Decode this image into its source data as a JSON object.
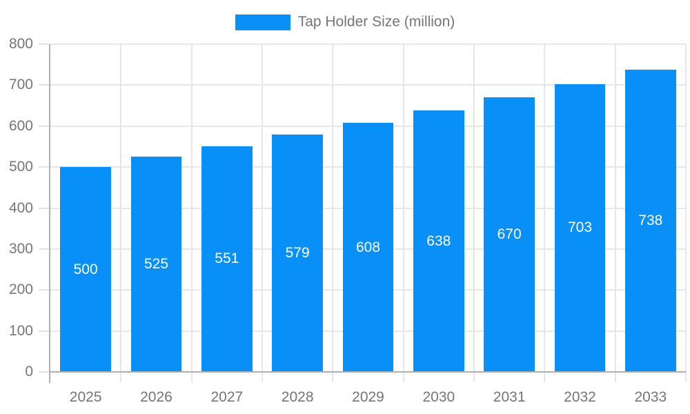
{
  "chart_data": {
    "type": "bar",
    "title": "",
    "xlabel": "",
    "ylabel": "",
    "legend": {
      "label": "Tap Holder Size (million)",
      "position": "top"
    },
    "categories": [
      "2025",
      "2026",
      "2027",
      "2028",
      "2029",
      "2030",
      "2031",
      "2032",
      "2033"
    ],
    "series": [
      {
        "name": "Tap Holder Size (million)",
        "values": [
          500,
          525,
          551,
          579,
          608,
          638,
          670,
          703,
          738
        ]
      }
    ],
    "ylim": [
      0,
      800
    ],
    "yticks": [
      0,
      100,
      200,
      300,
      400,
      500,
      600,
      700,
      800
    ],
    "grid": true,
    "bar_labels_visible": true
  },
  "colors": {
    "bar": "#0990f8",
    "bar_label": "#ffffff",
    "axis_line": "#b0b0b0",
    "gridline": "#e6e6e6",
    "tick": "#e2e2e2",
    "label_text": "#757575",
    "background": "#ffffff"
  }
}
